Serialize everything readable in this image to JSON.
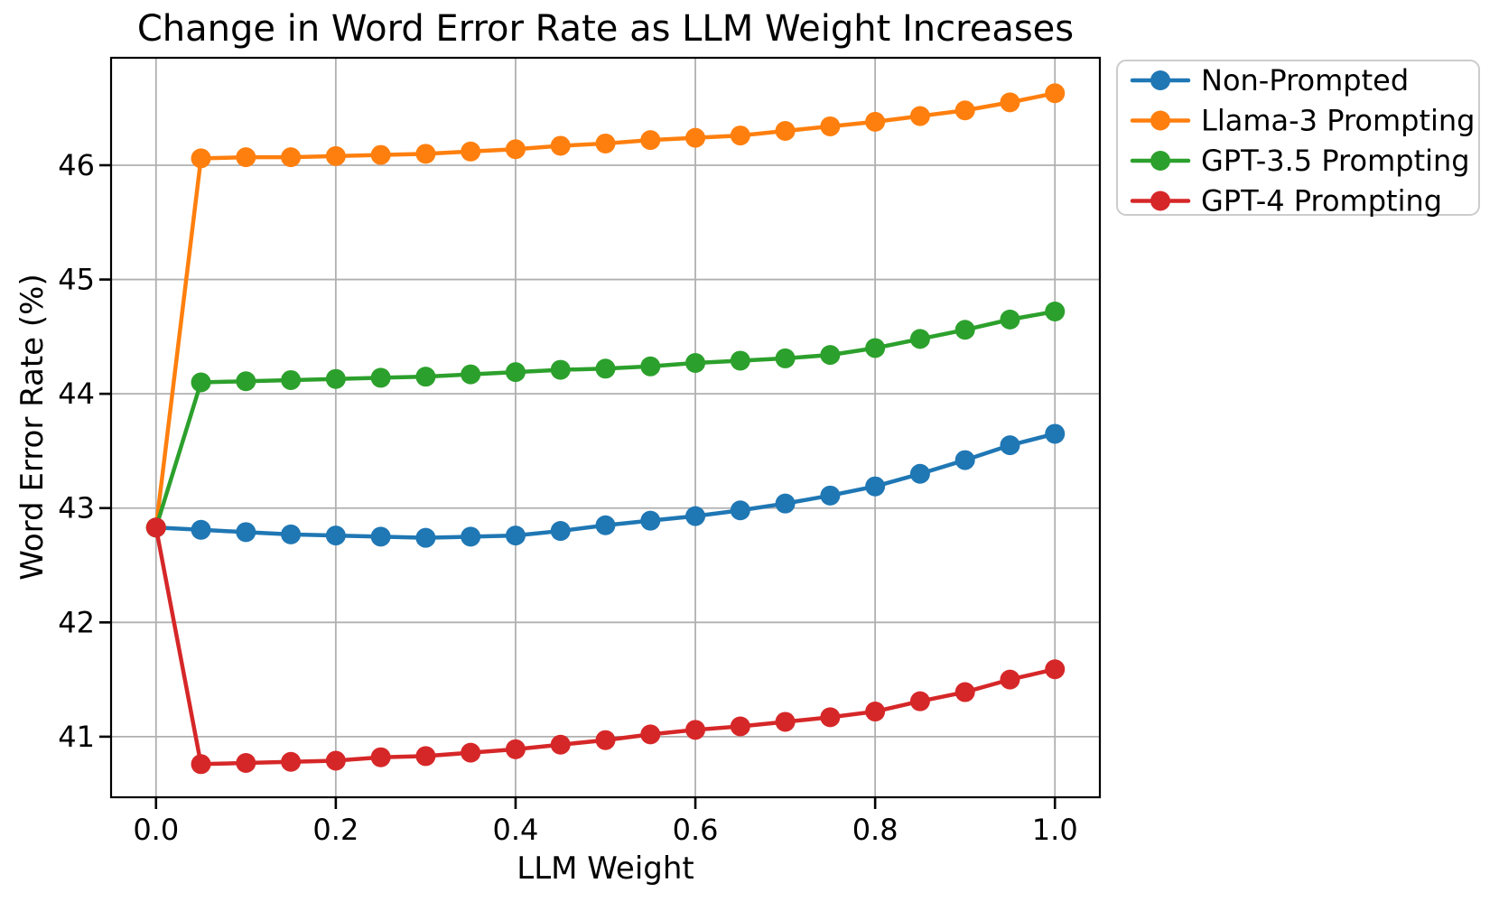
{
  "chart_data": {
    "type": "line",
    "title": "Change in Word Error Rate as LLM Weight Increases",
    "xlabel": "LLM Weight",
    "ylabel": "Word Error Rate (%)",
    "x": [
      0.0,
      0.05,
      0.1,
      0.15,
      0.2,
      0.25,
      0.3,
      0.35,
      0.4,
      0.45,
      0.5,
      0.55,
      0.6,
      0.65,
      0.7,
      0.75,
      0.8,
      0.85,
      0.9,
      0.95,
      1.0
    ],
    "series": [
      {
        "name": "Non-Prompted",
        "color": "#1f77b4",
        "values": [
          42.83,
          42.81,
          42.79,
          42.77,
          42.76,
          42.75,
          42.74,
          42.75,
          42.76,
          42.8,
          42.85,
          42.89,
          42.93,
          42.98,
          43.04,
          43.11,
          43.19,
          43.3,
          43.42,
          43.55,
          43.65
        ]
      },
      {
        "name": "Llama-3 Prompting",
        "color": "#ff7f0e",
        "values": [
          42.83,
          46.06,
          46.07,
          46.07,
          46.08,
          46.09,
          46.1,
          46.12,
          46.14,
          46.17,
          46.19,
          46.22,
          46.24,
          46.26,
          46.3,
          46.34,
          46.38,
          46.43,
          46.48,
          46.55,
          46.63
        ]
      },
      {
        "name": "GPT-3.5 Prompting",
        "color": "#2ca02c",
        "values": [
          42.83,
          44.1,
          44.11,
          44.12,
          44.13,
          44.14,
          44.15,
          44.17,
          44.19,
          44.21,
          44.22,
          44.24,
          44.27,
          44.29,
          44.31,
          44.34,
          44.4,
          44.48,
          44.56,
          44.65,
          44.72
        ]
      },
      {
        "name": "GPT-4 Prompting",
        "color": "#d62728",
        "values": [
          42.83,
          40.76,
          40.77,
          40.78,
          40.79,
          40.82,
          40.83,
          40.86,
          40.89,
          40.93,
          40.97,
          41.02,
          41.06,
          41.09,
          41.13,
          41.17,
          41.22,
          41.31,
          41.39,
          41.5,
          41.59
        ]
      }
    ],
    "xlim": [
      -0.05,
      1.05
    ],
    "ylim": [
      40.47,
      46.94
    ],
    "xticks": [
      0.0,
      0.2,
      0.4,
      0.6,
      0.8,
      1.0
    ],
    "xtick_labels": [
      "0.0",
      "0.2",
      "0.4",
      "0.6",
      "0.8",
      "1.0"
    ],
    "yticks": [
      41,
      42,
      43,
      44,
      45,
      46
    ],
    "ytick_labels": [
      "41",
      "42",
      "43",
      "44",
      "45",
      "46"
    ],
    "grid": true,
    "legend": {
      "position": "outside upper right",
      "entries": [
        "Non-Prompted",
        "Llama-3 Prompting",
        "GPT-3.5 Prompting",
        "GPT-4 Prompting"
      ]
    },
    "colors": {
      "grid": "#b0b0b0",
      "axis": "#000000",
      "background": "#ffffff",
      "legend_border": "#cccccc"
    }
  }
}
